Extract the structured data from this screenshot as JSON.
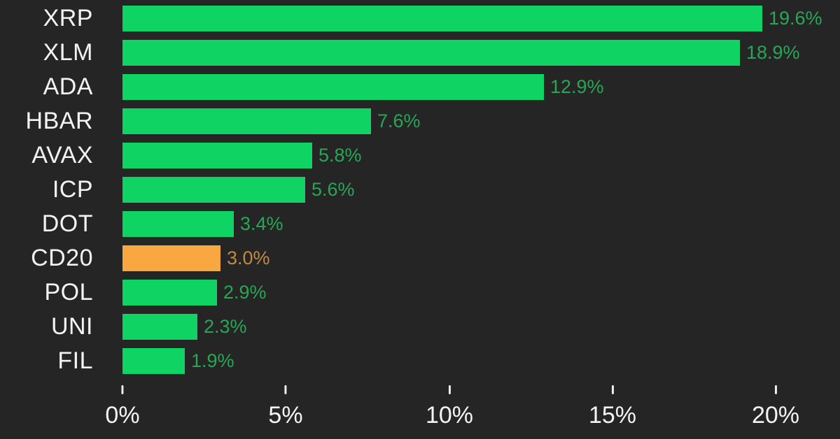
{
  "chart_data": {
    "type": "bar",
    "orientation": "horizontal",
    "title": "",
    "xlabel": "",
    "ylabel": "",
    "grid": false,
    "legend": false,
    "xlim": [
      0,
      20
    ],
    "categories": [
      "XRP",
      "XLM",
      "ADA",
      "HBAR",
      "AVAX",
      "ICP",
      "DOT",
      "CD20",
      "POL",
      "UNI",
      "FIL"
    ],
    "values": [
      19.6,
      18.9,
      12.9,
      7.6,
      5.8,
      5.6,
      3.4,
      3.0,
      2.9,
      2.3,
      1.9
    ],
    "value_labels": [
      "19.6%",
      "18.9%",
      "12.9%",
      "7.6%",
      "5.8%",
      "5.6%",
      "3.4%",
      "3.0%",
      "2.9%",
      "2.3%",
      "1.9%"
    ],
    "highlight_category": "CD20",
    "x_ticks": [
      {
        "value": 0,
        "label": "0%"
      },
      {
        "value": 5,
        "label": "5%"
      },
      {
        "value": 10,
        "label": "10%"
      },
      {
        "value": 15,
        "label": "15%"
      },
      {
        "value": 20,
        "label": "20%"
      }
    ],
    "colors": {
      "background": "#252525",
      "bar_positive": "#0fd463",
      "bar_highlight": "#f9a841",
      "value_label_positive": "#29a556",
      "value_label_highlight": "#c08a43",
      "category_label": "#f3f3f3",
      "axis_label": "#f3f3f3",
      "tick_mark": "#ededed"
    }
  }
}
